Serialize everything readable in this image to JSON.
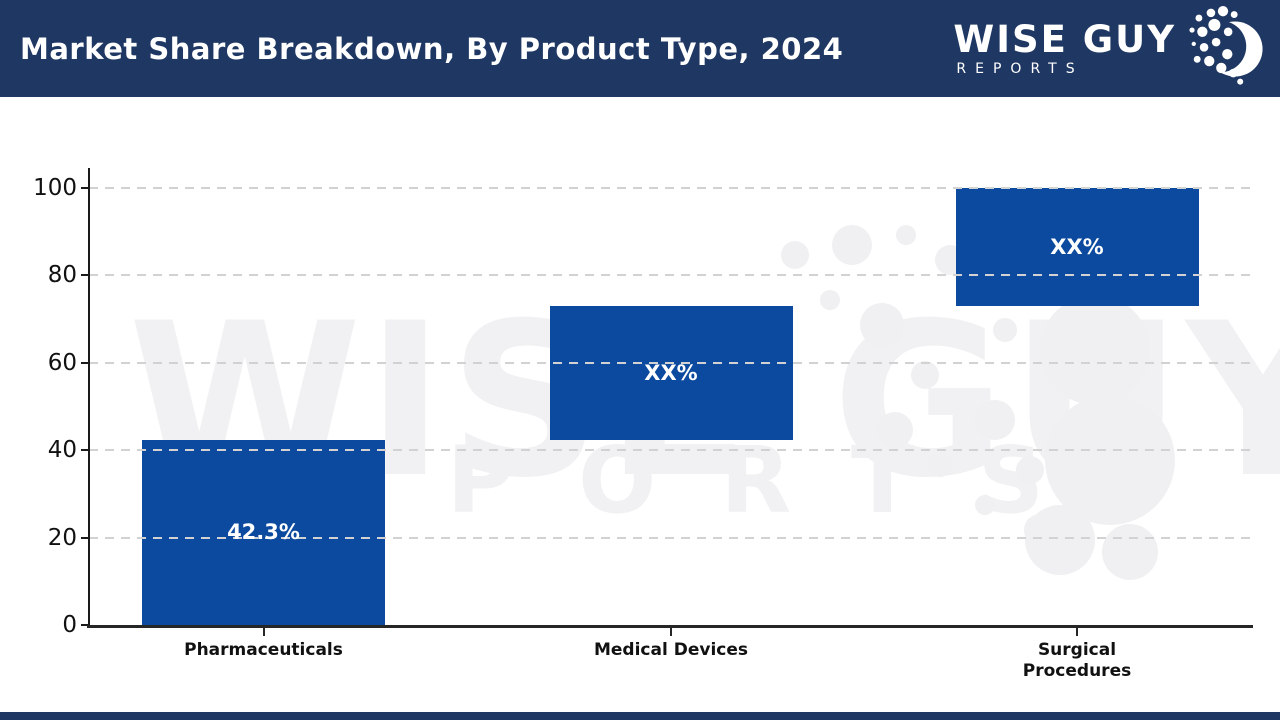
{
  "header": {
    "title": "Market Share Breakdown, By Product Type, 2024",
    "logo": {
      "line1": "WISE GUY",
      "line2": "REPORTS"
    }
  },
  "watermark": {
    "line1": "WISE GUY",
    "line2": "REPORTS"
  },
  "chart_data": {
    "type": "bar",
    "subtype": "stacked-waterfall-segments",
    "title": "Market Share Breakdown, By Product Type, 2024",
    "categories": [
      "Pharmaceuticals",
      "Medical Devices",
      "Surgical Procedures"
    ],
    "segments": [
      {
        "category": "Pharmaceuticals",
        "start": 0,
        "end": 42.3,
        "label": "42.3%"
      },
      {
        "category": "Medical Devices",
        "start": 42.3,
        "end": 73,
        "label": "XX%"
      },
      {
        "category": "Surgical Procedures",
        "start": 73,
        "end": 100,
        "label": "XX%"
      }
    ],
    "xlabel": "",
    "ylabel": "",
    "ylim": [
      0,
      100
    ],
    "yticks": [
      0,
      20,
      40,
      60,
      80,
      100
    ],
    "grid": "horizontal-dashed",
    "legend": "none",
    "bar_color": "#0b4a9e",
    "bar_label_color": "#ffffff",
    "header_color": "#1f3863"
  }
}
